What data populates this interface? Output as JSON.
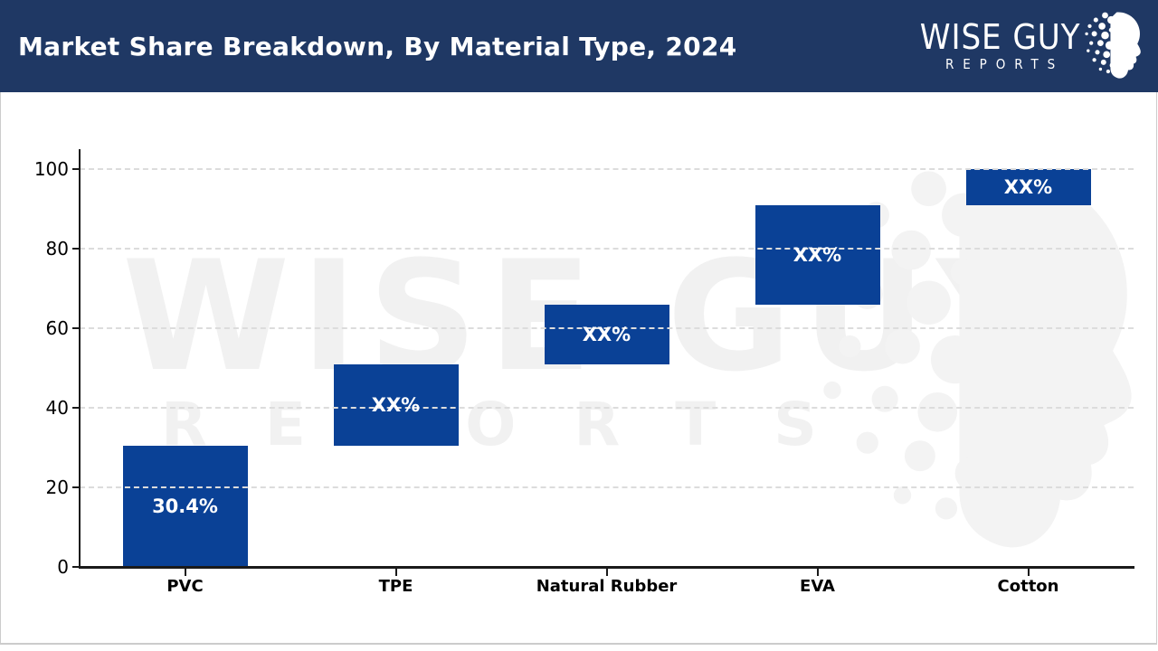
{
  "header": {
    "title": "Market Share Breakdown, By Material Type, 2024",
    "bg_color": "#1f3864",
    "logo": {
      "line1": "WISE GUY",
      "line2": "REPORTS"
    }
  },
  "watermark": {
    "line1": "WISE GUY",
    "line2": "REPORTS"
  },
  "chart_data": {
    "type": "bar",
    "subtype": "waterfall",
    "title": "Market Share Breakdown, By Material Type, 2024",
    "categories": [
      "PVC",
      "TPE",
      "Natural Rubber",
      "EVA",
      "Cotton"
    ],
    "segments": [
      {
        "category": "PVC",
        "start": 0,
        "end": 30.4,
        "label": "30.4%"
      },
      {
        "category": "TPE",
        "start": 30.4,
        "end": 51,
        "label": "XX%"
      },
      {
        "category": "Natural Rubber",
        "start": 51,
        "end": 66,
        "label": "XX%"
      },
      {
        "category": "EVA",
        "start": 66,
        "end": 91,
        "label": "XX%"
      },
      {
        "category": "Cotton",
        "start": 91,
        "end": 100,
        "label": "XX%"
      }
    ],
    "yticks": [
      0,
      20,
      40,
      60,
      80,
      100
    ],
    "ylim": [
      0,
      105
    ],
    "xlabel": "",
    "ylabel": "",
    "grid": "horizontal-dashed-over-bars",
    "legend": "none",
    "bar_color": "#0a4196",
    "bar_label_color": "#ffffff",
    "axis_color": "#1a1a1a"
  }
}
